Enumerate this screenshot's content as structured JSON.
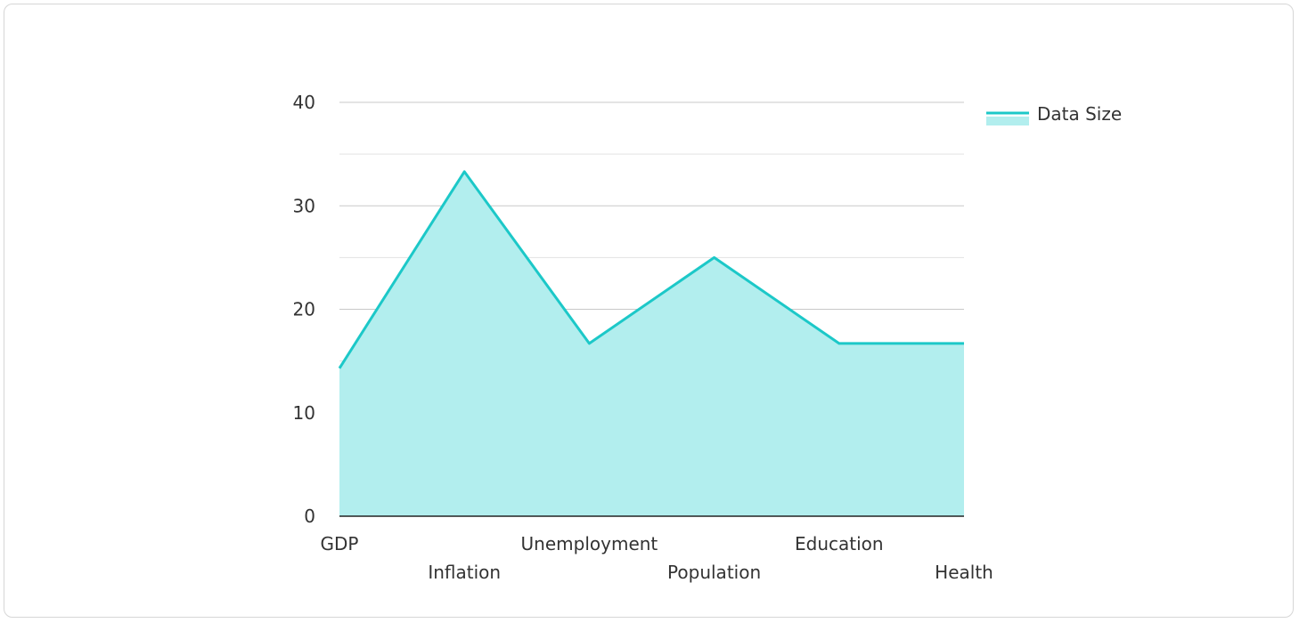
{
  "chart_data": {
    "type": "area",
    "title": "",
    "xlabel": "",
    "ylabel": "",
    "categories": [
      "GDP",
      "Inflation",
      "Unemployment",
      "Population",
      "Education",
      "Health"
    ],
    "series": [
      {
        "name": "Data Size",
        "values": [
          14.3,
          33.3,
          16.7,
          25.0,
          16.7,
          16.7
        ]
      }
    ],
    "ylim": [
      0,
      40
    ],
    "yticks": [
      0,
      10,
      20,
      30,
      40
    ],
    "grid": true,
    "legend": "top-right",
    "colors": {
      "line": "#1cc8c8",
      "fill": "#b2eeee",
      "grid_major": "#c8c8c8",
      "grid_minor": "#e3e3e3",
      "axis": "#222222"
    }
  }
}
